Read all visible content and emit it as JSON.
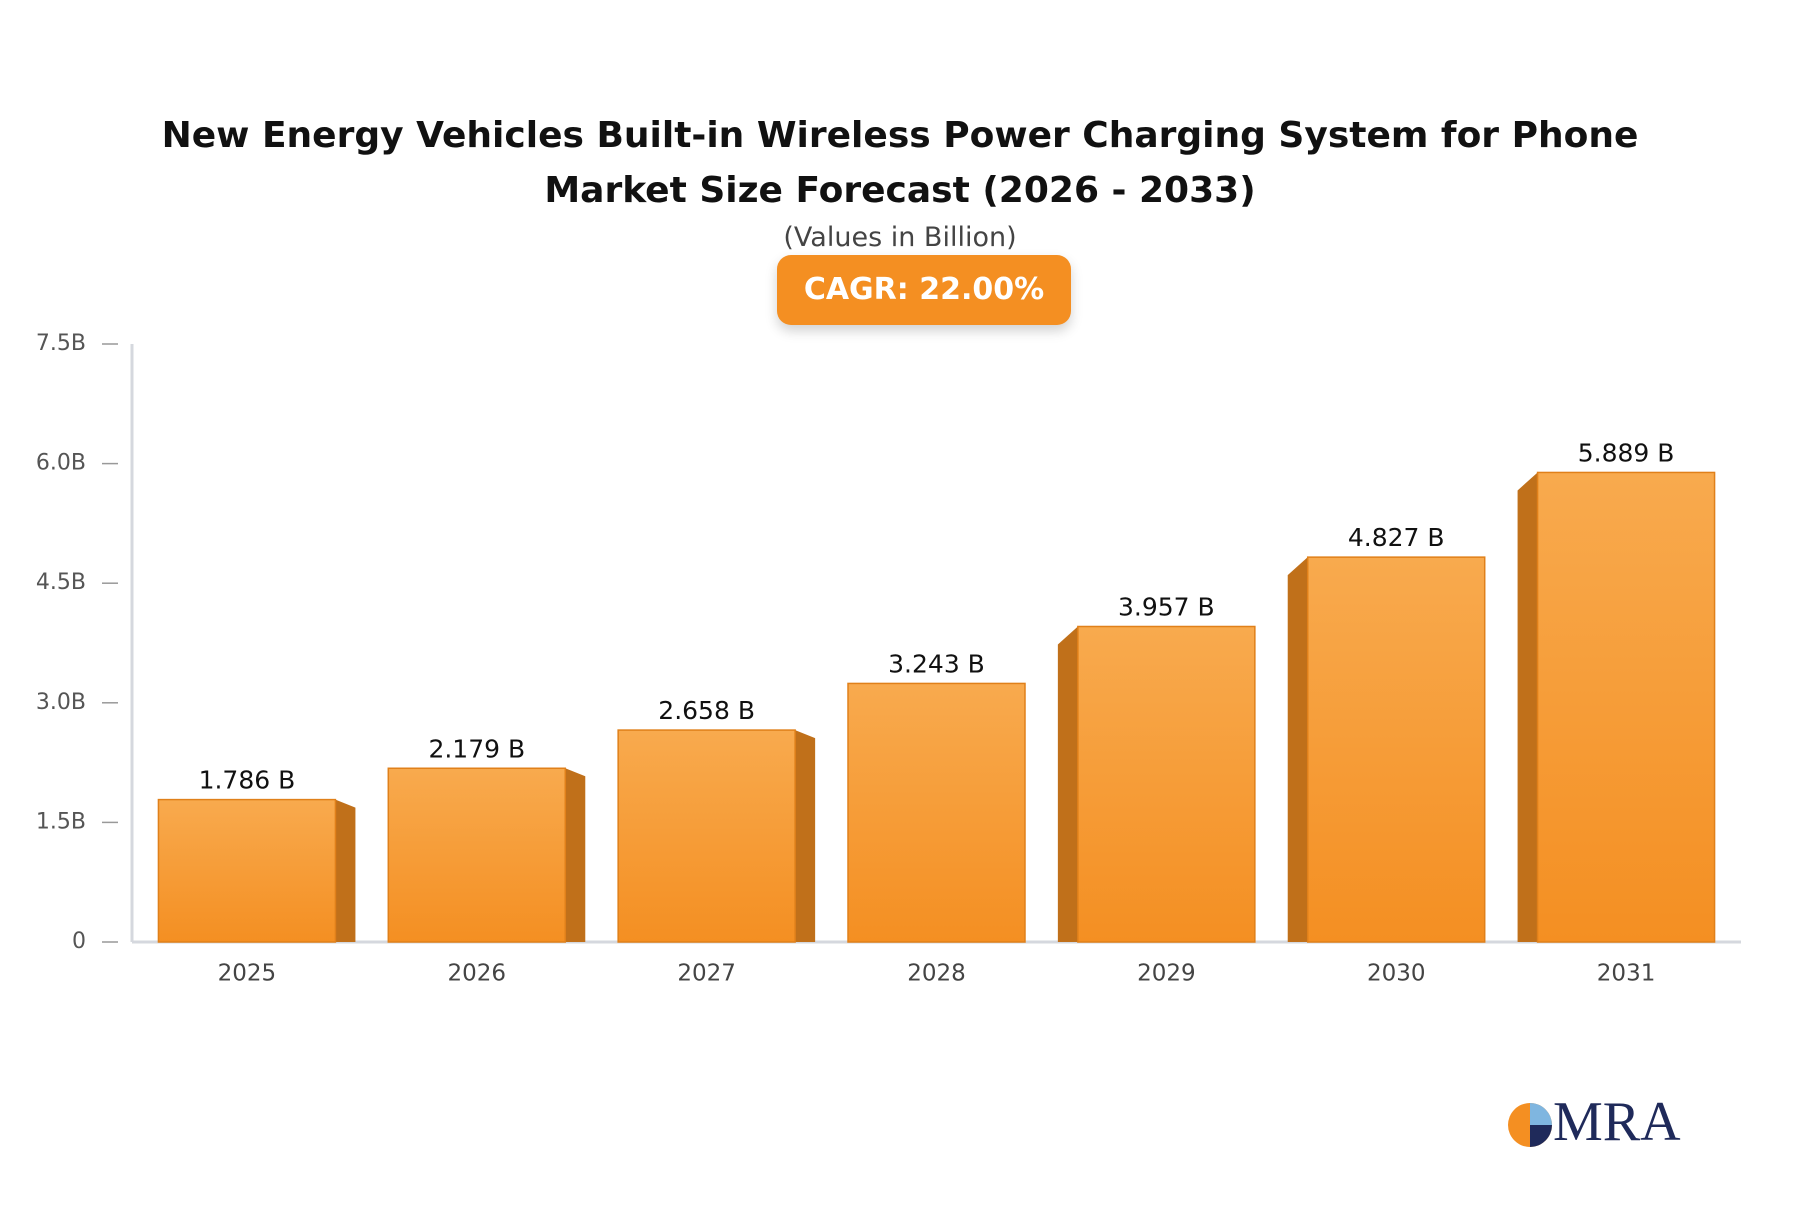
{
  "chart_data": {
    "type": "bar",
    "title": "New Energy Vehicles Built-in Wireless Power Charging System for Phone Market Size Forecast (2026 - 2033)",
    "subtitle": "(Values in Billion)",
    "badge": "CAGR: 22.00%",
    "categories": [
      "2025",
      "2026",
      "2027",
      "2028",
      "2029",
      "2030",
      "2031"
    ],
    "values": [
      1.786,
      2.179,
      2.658,
      3.243,
      3.957,
      4.827,
      5.889
    ],
    "value_labels": [
      "1.786 B",
      "2.179 B",
      "2.658 B",
      "3.243 B",
      "3.957 B",
      "4.827 B",
      "5.889 B"
    ],
    "color": "#f5962c",
    "ylim": [
      0,
      7.5
    ],
    "yticks": [
      0,
      {
        "value": 1.5,
        "label": "1.5B"
      },
      {
        "value": 3.0,
        "label": "3.0B"
      },
      {
        "value": 4.5,
        "label": "4.5B"
      },
      {
        "value": 6.0,
        "label": "6.0B"
      },
      {
        "value": 7.5,
        "label": "7.5B"
      }
    ],
    "grid": false,
    "logo": "MRA"
  }
}
